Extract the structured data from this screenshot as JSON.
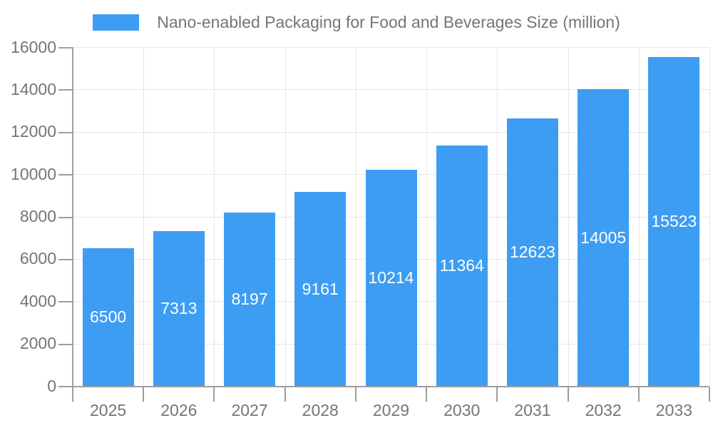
{
  "chart_data": {
    "type": "bar",
    "title": "Nano-enabled Packaging for Food and Beverages Size (million)",
    "categories": [
      "2025",
      "2026",
      "2027",
      "2028",
      "2029",
      "2030",
      "2031",
      "2032",
      "2033"
    ],
    "values": [
      6500,
      7313,
      8197,
      9161,
      10214,
      11364,
      12623,
      14005,
      15523
    ],
    "xlabel": "",
    "ylabel": "",
    "ylim": [
      0,
      16000
    ],
    "ytick_step": 2000,
    "grid": true,
    "legend_position": "top-center",
    "bar_value_labels": "inside-center",
    "colors": {
      "bar": "#3d9df3",
      "grid": "#e6e6e6",
      "axis": "#9e9e9e",
      "tick_label": "#757575",
      "bar_label": "#ffffff",
      "background": "#ffffff"
    }
  }
}
